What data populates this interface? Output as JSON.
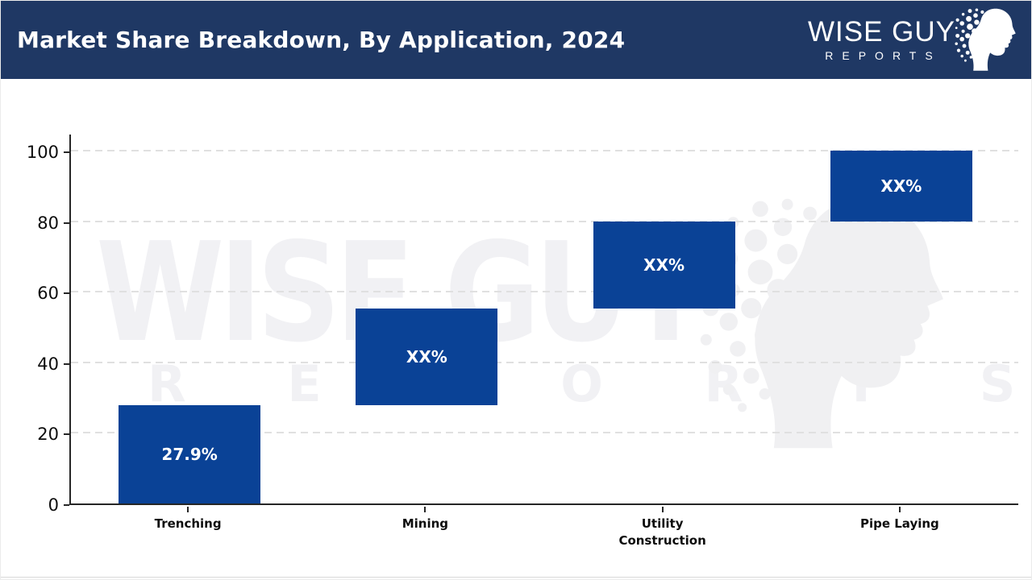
{
  "header": {
    "title": "Market Share Breakdown, By Application, 2024",
    "logo": {
      "name": "WISE GUY",
      "subtitle": "REPORTS"
    }
  },
  "watermark": {
    "line1": "WISE GUY",
    "line2": "R E P O R T S"
  },
  "chart_data": {
    "type": "bar",
    "subtype": "waterfall",
    "title": "Market Share Breakdown, By Application, 2024",
    "xlabel": "",
    "ylabel": "",
    "categories": [
      "Trenching",
      "Mining",
      "Utility Construction",
      "Pipe Laying"
    ],
    "segments": [
      {
        "category": "Trenching",
        "start": 0,
        "end": 27.9,
        "label": "27.9%"
      },
      {
        "category": "Mining",
        "start": 27.9,
        "end": 55.3,
        "label": "XX%"
      },
      {
        "category": "Utility Construction",
        "start": 55.3,
        "end": 80.0,
        "label": "XX%"
      },
      {
        "category": "Pipe Laying",
        "start": 80.0,
        "end": 100.0,
        "label": "XX%"
      }
    ],
    "yticks": [
      0,
      20,
      40,
      60,
      80,
      100
    ],
    "ylim": [
      0,
      105
    ],
    "grid": "horizontal-dashed",
    "legend": "none",
    "bar_color": "#0a4296",
    "bar_label_color": "#ffffff",
    "axis_color": "#262626",
    "grid_color": "#e0e0e0",
    "header_color": "#1f3864",
    "watermark_color": "#f1f1f4"
  }
}
